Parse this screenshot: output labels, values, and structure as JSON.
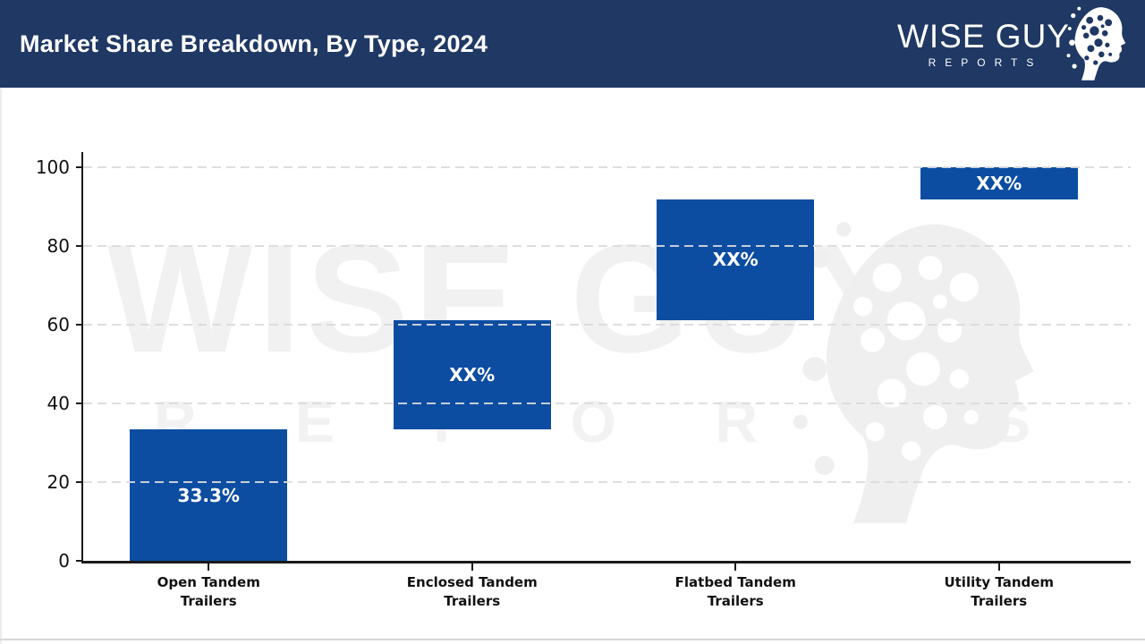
{
  "header": {
    "title": "Market Share Breakdown, By Type, 2024",
    "logo": {
      "wordmark": "WISE GUY",
      "subtext": "REPORTS"
    }
  },
  "watermark": {
    "wordmark": "WISE GUY",
    "subtext": "R E P O R T S"
  },
  "chart_data": {
    "type": "bar",
    "subtype": "waterfall",
    "title": "Market Share Breakdown, By Type, 2024",
    "categories": [
      "Open Tandem Trailers",
      "Enclosed Tandem Trailers",
      "Flatbed Tandem Trailers",
      "Utility Tandem Trailers"
    ],
    "category_lines": [
      [
        "Open Tandem",
        "Trailers"
      ],
      [
        "Enclosed Tandem",
        "Trailers"
      ],
      [
        "Flatbed Tandem",
        "Trailers"
      ],
      [
        "Utility Tandem",
        "Trailers"
      ]
    ],
    "series": [
      {
        "name": "Market Share",
        "segments": [
          {
            "category": "Open Tandem Trailers",
            "start": 0,
            "end": 33.3,
            "label": "33.3%"
          },
          {
            "category": "Enclosed Tandem Trailers",
            "start": 33.3,
            "end": 61.1,
            "label": "XX%"
          },
          {
            "category": "Flatbed Tandem Trailers",
            "start": 61.1,
            "end": 91.9,
            "label": "XX%"
          },
          {
            "category": "Utility Tandem Trailers",
            "start": 91.9,
            "end": 100,
            "label": "XX%"
          }
        ]
      }
    ],
    "ylim": [
      0,
      104
    ],
    "yticks": [
      0,
      20,
      40,
      60,
      80,
      100
    ],
    "grid": "horizontal dashed, drawn over bars",
    "legend": "none",
    "bar_color": "#0C4DA2",
    "bar_label_color": "#ffffff",
    "axis_color": "#1a1a1a",
    "grid_color": "#dbdbdb",
    "header_color": "#1F3864",
    "watermark_color": "#f1f1f1"
  }
}
